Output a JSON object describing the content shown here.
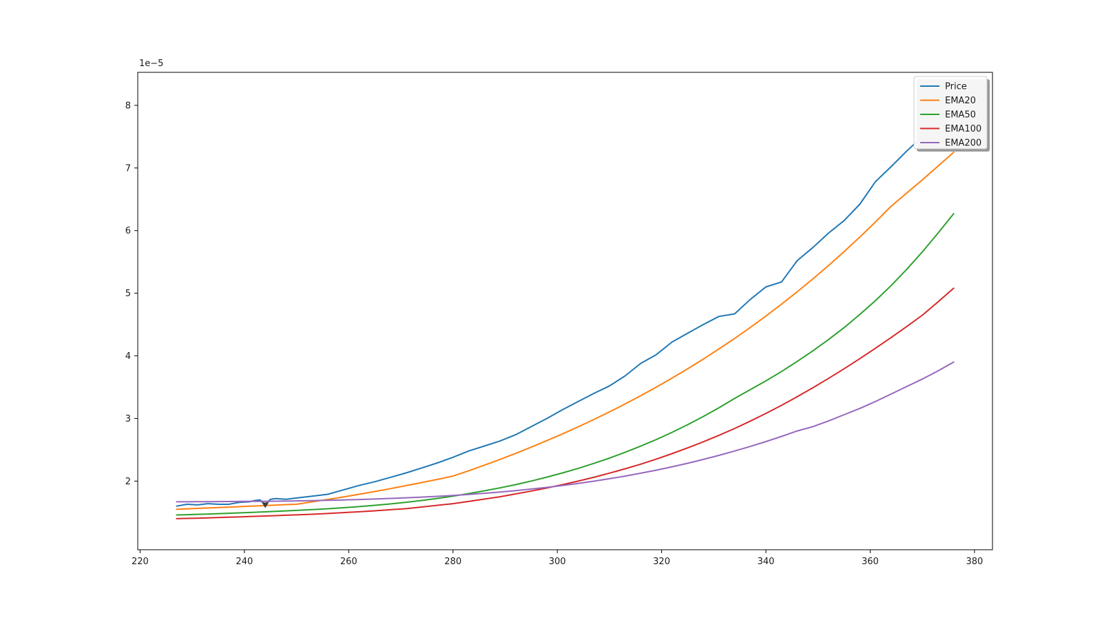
{
  "figure": {
    "background": "#ffffff",
    "frame_color": "#000000",
    "text_color": "#1a1a1a"
  },
  "chart_data": {
    "type": "line",
    "title": "",
    "xlabel": "",
    "ylabel": "",
    "offset_text": "1e−5",
    "value_scale": "1e-5",
    "grid": false,
    "xlim": [
      219.55,
      383.45
    ],
    "ylim": [
      0.904,
      8.527
    ],
    "x_ticks": [
      220,
      240,
      260,
      280,
      300,
      320,
      340,
      360,
      380
    ],
    "y_ticks": [
      2,
      3,
      4,
      5,
      6,
      7,
      8
    ],
    "legend": {
      "position": "upper right",
      "shadow": true,
      "entries": [
        "Price",
        "EMA20",
        "EMA50",
        "EMA100",
        "EMA200"
      ]
    },
    "x": [
      227,
      229,
      231,
      233,
      235,
      237,
      239,
      241,
      242,
      243,
      244,
      245,
      246,
      248,
      250,
      253,
      256,
      259,
      262,
      265,
      268,
      271,
      274,
      277,
      280,
      283,
      286,
      289,
      292,
      295,
      298,
      301,
      304,
      307,
      310,
      313,
      316,
      319,
      322,
      325,
      328,
      331,
      334,
      337,
      340,
      343,
      346,
      349,
      352,
      355,
      358,
      361,
      364,
      367,
      370,
      373,
      376
    ],
    "series": [
      {
        "name": "Price",
        "color": "#1f77b4",
        "values": [
          1.6,
          1.63,
          1.62,
          1.64,
          1.63,
          1.63,
          1.66,
          1.67,
          1.69,
          1.7,
          1.62,
          1.71,
          1.72,
          1.71,
          1.73,
          1.76,
          1.79,
          1.86,
          1.93,
          1.99,
          2.06,
          2.13,
          2.21,
          2.29,
          2.38,
          2.48,
          2.56,
          2.64,
          2.74,
          2.87,
          3.0,
          3.14,
          3.27,
          3.4,
          3.52,
          3.68,
          3.88,
          4.02,
          4.22,
          4.36,
          4.5,
          4.63,
          4.67,
          4.9,
          5.1,
          5.18,
          5.52,
          5.73,
          5.96,
          6.16,
          6.42,
          6.78,
          7.02,
          7.27,
          7.5,
          7.82,
          8.15
        ]
      },
      {
        "name": "EMA20",
        "color": "#ff7f0e",
        "values": [
          1.55,
          1.557,
          1.564,
          1.571,
          1.578,
          1.585,
          1.592,
          1.599,
          1.603,
          1.606,
          1.61,
          1.613,
          1.617,
          1.624,
          1.63,
          1.668,
          1.707,
          1.747,
          1.789,
          1.834,
          1.88,
          1.928,
          1.977,
          2.027,
          2.08,
          2.165,
          2.254,
          2.346,
          2.442,
          2.542,
          2.646,
          2.754,
          2.866,
          2.983,
          3.105,
          3.232,
          3.364,
          3.501,
          3.644,
          3.793,
          3.948,
          4.11,
          4.278,
          4.453,
          4.635,
          4.825,
          5.022,
          5.228,
          5.442,
          5.664,
          5.896,
          6.137,
          6.388,
          6.6,
          6.81,
          7.03,
          7.25
        ]
      },
      {
        "name": "EMA50",
        "color": "#2ca02c",
        "values": [
          1.46,
          1.464,
          1.469,
          1.474,
          1.48,
          1.486,
          1.492,
          1.499,
          1.502,
          1.506,
          1.509,
          1.513,
          1.517,
          1.524,
          1.532,
          1.545,
          1.559,
          1.575,
          1.593,
          1.613,
          1.636,
          1.662,
          1.691,
          1.724,
          1.76,
          1.8,
          1.844,
          1.892,
          1.944,
          2.001,
          2.063,
          2.13,
          2.203,
          2.282,
          2.367,
          2.459,
          2.558,
          2.664,
          2.778,
          2.9,
          3.031,
          3.171,
          3.32,
          3.46,
          3.6,
          3.75,
          3.91,
          4.08,
          4.26,
          4.45,
          4.66,
          4.88,
          5.12,
          5.38,
          5.66,
          5.96,
          6.27
        ]
      },
      {
        "name": "EMA100",
        "color": "#d62728",
        "values": [
          1.4,
          1.404,
          1.408,
          1.413,
          1.418,
          1.423,
          1.428,
          1.434,
          1.437,
          1.44,
          1.443,
          1.446,
          1.449,
          1.455,
          1.461,
          1.47,
          1.483,
          1.497,
          1.51,
          1.526,
          1.543,
          1.56,
          1.586,
          1.613,
          1.64,
          1.675,
          1.712,
          1.75,
          1.795,
          1.841,
          1.89,
          1.944,
          2.0,
          2.06,
          2.127,
          2.197,
          2.27,
          2.352,
          2.438,
          2.53,
          2.628,
          2.731,
          2.84,
          2.958,
          3.081,
          3.21,
          3.347,
          3.49,
          3.64,
          3.794,
          3.954,
          4.12,
          4.291,
          4.467,
          4.65,
          4.862,
          5.08
        ]
      },
      {
        "name": "EMA200",
        "color": "#9467bd",
        "values": [
          1.67,
          1.67,
          1.671,
          1.672,
          1.673,
          1.674,
          1.675,
          1.676,
          1.677,
          1.677,
          1.678,
          1.678,
          1.679,
          1.681,
          1.684,
          1.688,
          1.693,
          1.699,
          1.706,
          1.714,
          1.723,
          1.733,
          1.744,
          1.757,
          1.771,
          1.787,
          1.805,
          1.825,
          1.848,
          1.873,
          1.9,
          1.93,
          1.963,
          1.999,
          2.038,
          2.08,
          2.126,
          2.175,
          2.228,
          2.285,
          2.346,
          2.411,
          2.48,
          2.553,
          2.631,
          2.713,
          2.8,
          2.87,
          2.96,
          3.06,
          3.16,
          3.27,
          3.39,
          3.51,
          3.63,
          3.76,
          3.9
        ]
      }
    ],
    "dip_marker": {
      "x": 244,
      "value": 1.615,
      "symbol": "triangle-down",
      "color": "#3d3d3d"
    }
  }
}
